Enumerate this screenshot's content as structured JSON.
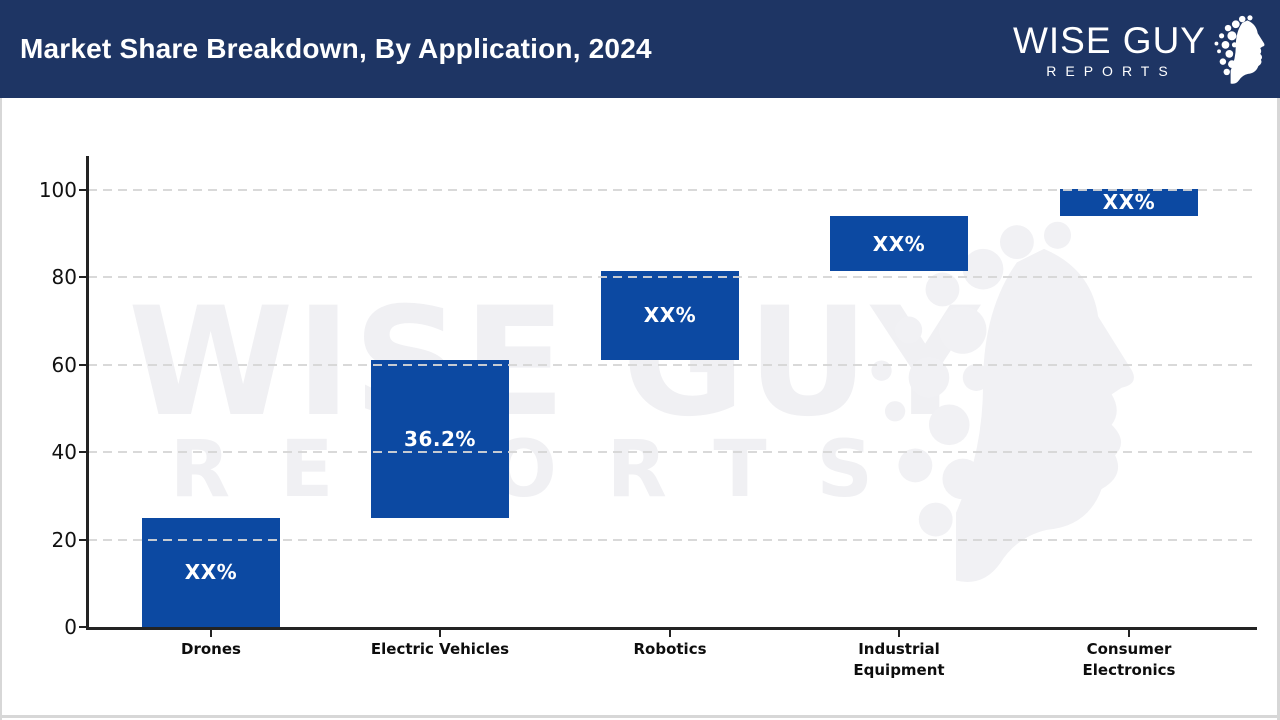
{
  "header": {
    "title": "Market Share Breakdown, By Application, 2024",
    "brand": {
      "name": "WISE GUY",
      "subtitle": "REPORTS"
    }
  },
  "watermark": {
    "line1": "WISE GUY",
    "line2": "REPORTS"
  },
  "chart_data": {
    "type": "bar",
    "subtype": "floating-waterfall",
    "title": "Market Share Breakdown, By Application, 2024",
    "categories": [
      "Drones",
      "Electric Vehicles",
      "Robotics",
      "Industrial\nEquipment",
      "Consumer\nElectronics"
    ],
    "bars": [
      {
        "category": "Drones",
        "start": 0,
        "end": 25,
        "label": "XX%"
      },
      {
        "category": "Electric Vehicles",
        "start": 25,
        "end": 61.2,
        "label": "36.2%",
        "value": 36.2
      },
      {
        "category": "Robotics",
        "start": 61.2,
        "end": 81.4,
        "label": "XX%"
      },
      {
        "category": "Industrial Equipment",
        "start": 81.4,
        "end": 94.1,
        "label": "XX%"
      },
      {
        "category": "Consumer Electronics",
        "start": 94.1,
        "end": 100.3,
        "label": "XX%"
      }
    ],
    "yticks": [
      0,
      20,
      40,
      60,
      80,
      100
    ],
    "ylim": [
      0,
      105
    ],
    "grid": "horizontal-dashed",
    "legend": "none",
    "xlabel": "",
    "ylabel": ""
  },
  "colors": {
    "header_bg": "#1e3564",
    "bar_fill": "#0c49a2",
    "bar_label": "#ffffff",
    "axis": "#232323",
    "gridline": "#d6d6d6",
    "watermark": "#f0f0f3",
    "frame_border": "#d7d7d7"
  }
}
